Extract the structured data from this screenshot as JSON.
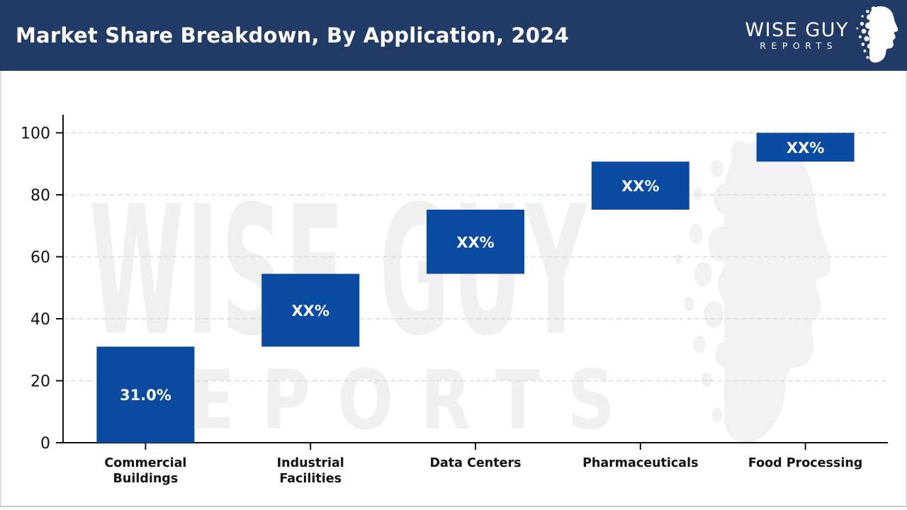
{
  "header": {
    "title": "Market Share Breakdown, By Application, 2024",
    "logo": {
      "line1": "WISE GUY",
      "line2": "REPORTS"
    }
  },
  "watermark": {
    "line1": "WISE GUY",
    "line2": "REPORTS"
  },
  "chart_data": {
    "type": "bar",
    "variant": "waterfall",
    "title": "Market Share Breakdown, By Application, 2024",
    "categories": [
      "Commercial Buildings",
      "Industrial Facilities",
      "Data Centers",
      "Pharmaceuticals",
      "Food Processing"
    ],
    "bars": [
      {
        "category_lines": [
          "Commercial",
          "Buildings"
        ],
        "start": 0,
        "end": 31.0,
        "label": "31.0%"
      },
      {
        "category_lines": [
          "Industrial",
          "Facilities"
        ],
        "start": 31.0,
        "end": 54.5,
        "label": "XX%"
      },
      {
        "category_lines": [
          "Data Centers"
        ],
        "start": 54.5,
        "end": 75.2,
        "label": "XX%"
      },
      {
        "category_lines": [
          "Pharmaceuticals"
        ],
        "start": 75.2,
        "end": 90.7,
        "label": "XX%"
      },
      {
        "category_lines": [
          "Food Processing"
        ],
        "start": 90.7,
        "end": 100.0,
        "label": "XX%"
      }
    ],
    "yticks": [
      0,
      20,
      40,
      60,
      80,
      100
    ],
    "ylim": [
      0,
      104
    ],
    "grid": "horizontal-dashed",
    "legend": "none",
    "bar_color": "#0a4aa0",
    "value_label_color": "#ffffff",
    "axis_color": "#111111",
    "grid_color": "#dcdcdc"
  }
}
